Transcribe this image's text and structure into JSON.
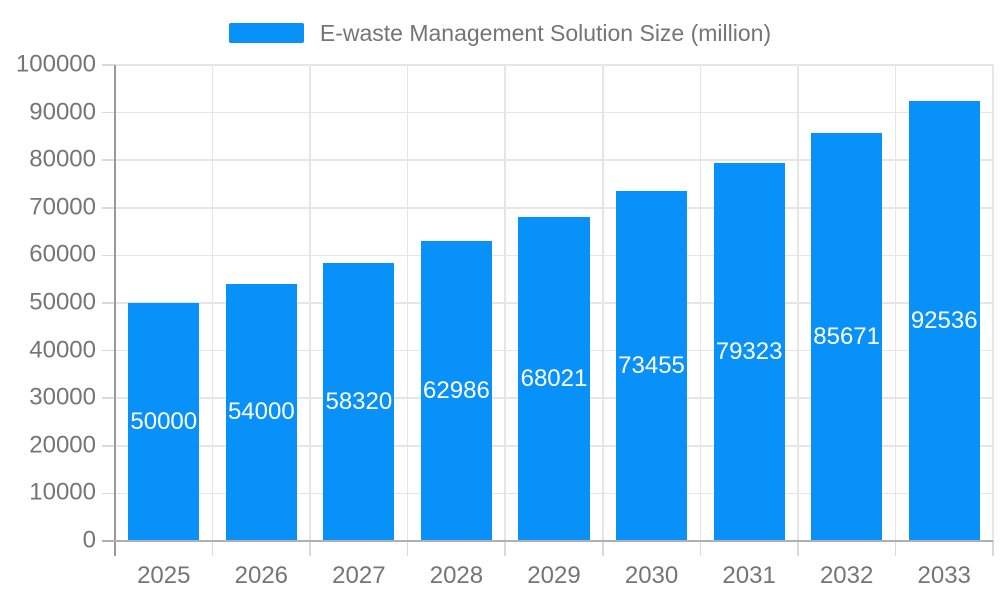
{
  "colors": {
    "bar": "#0991fa",
    "bar_label": "#ffffff",
    "axis_text": "#757575",
    "grid": "#e6e6e6",
    "tick": "#d9d9d9",
    "axis_line_y": "#999999",
    "axis_line_x": "#b0b0b0",
    "background": "#ffffff"
  },
  "chart_data": {
    "type": "bar",
    "title": "",
    "categories": [
      "2025",
      "2026",
      "2027",
      "2028",
      "2029",
      "2030",
      "2031",
      "2032",
      "2033"
    ],
    "series": [
      {
        "name": "E-waste Management Solution Size (million)",
        "values": [
          50000,
          54000,
          58320,
          62986,
          68021,
          73455,
          79323,
          85671,
          92536
        ]
      }
    ],
    "xlabel": "",
    "ylabel": "",
    "ylim": [
      0,
      100000
    ],
    "ytick_step": 10000,
    "yticks": [
      0,
      10000,
      20000,
      30000,
      40000,
      50000,
      60000,
      70000,
      80000,
      90000,
      100000
    ],
    "grid": true,
    "legend_position": "top-center",
    "value_labels": "inside-center"
  }
}
